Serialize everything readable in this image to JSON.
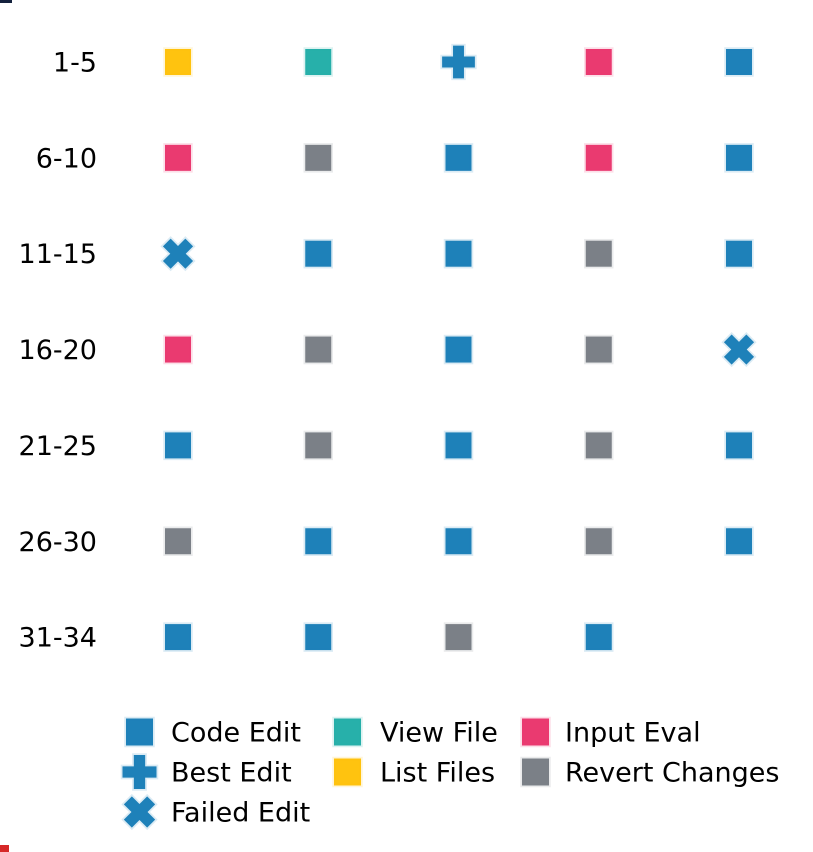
{
  "figure": {
    "background": "#ffffff",
    "text_color": "#000000"
  },
  "chart_data": {
    "type": "scatter",
    "title": "",
    "xlabel": "",
    "ylabel": "",
    "grid": false,
    "row_labels": [
      "1-5",
      "6-10",
      "11-15",
      "16-20",
      "21-25",
      "26-30",
      "31-34"
    ],
    "rows": [
      {
        "label": "1-5",
        "actions": [
          "List Files",
          "View File",
          "Best Edit",
          "Input Eval",
          "Code Edit"
        ]
      },
      {
        "label": "6-10",
        "actions": [
          "Input Eval",
          "Revert Changes",
          "Code Edit",
          "Input Eval",
          "Code Edit"
        ]
      },
      {
        "label": "11-15",
        "actions": [
          "Failed Edit",
          "Code Edit",
          "Code Edit",
          "Revert Changes",
          "Code Edit"
        ]
      },
      {
        "label": "16-20",
        "actions": [
          "Input Eval",
          "Revert Changes",
          "Code Edit",
          "Revert Changes",
          "Failed Edit"
        ]
      },
      {
        "label": "21-25",
        "actions": [
          "Code Edit",
          "Revert Changes",
          "Code Edit",
          "Revert Changes",
          "Code Edit"
        ]
      },
      {
        "label": "26-30",
        "actions": [
          "Revert Changes",
          "Code Edit",
          "Code Edit",
          "Revert Changes",
          "Code Edit"
        ]
      },
      {
        "label": "31-34",
        "actions": [
          "Code Edit",
          "Code Edit",
          "Revert Changes",
          "Code Edit"
        ]
      }
    ],
    "legend": [
      {
        "label": "Code Edit",
        "marker": "square",
        "color": "#1E81B9"
      },
      {
        "label": "Best Edit",
        "marker": "plus",
        "color": "#1E81B9"
      },
      {
        "label": "Failed Edit",
        "marker": "x",
        "color": "#1E81B9"
      },
      {
        "label": "View File",
        "marker": "square",
        "color": "#27B0AA"
      },
      {
        "label": "List Files",
        "marker": "square",
        "color": "#FFC30F"
      },
      {
        "label": "Input Eval",
        "marker": "square",
        "color": "#EA3A70"
      },
      {
        "label": "Revert Changes",
        "marker": "square",
        "color": "#7B8087"
      }
    ],
    "legend_position": "bottom",
    "legend_ncol": 3,
    "legend_col_counts": [
      3,
      2,
      2
    ]
  }
}
